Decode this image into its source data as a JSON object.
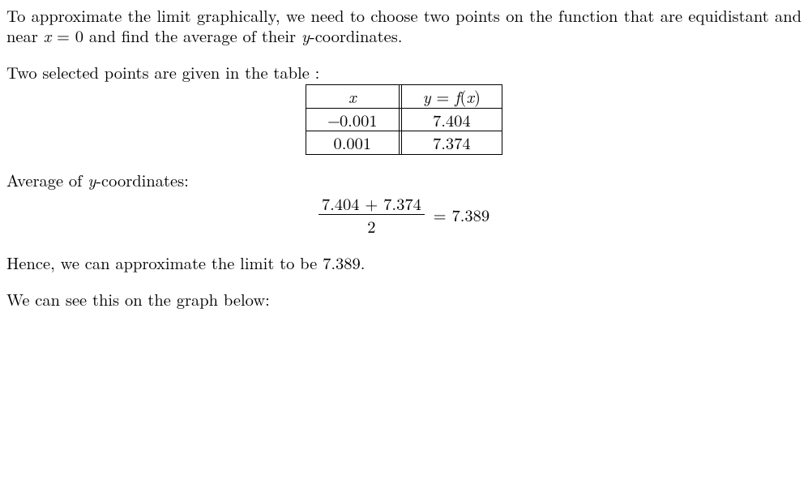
{
  "para1": {
    "a": "To approximate the limit graphically, we need to choose two points on the function that are equidistant and near ",
    "eq": "x = 0",
    "eq_lhs": "x",
    "eq_rhs": " = 0",
    "b": " and find the average of their ",
    "yvar": "y",
    "c": "-coordinates."
  },
  "para2": "Two selected points are given in the table :",
  "table": {
    "header": {
      "x": "x",
      "y_lhs": "y",
      "y_eq": " = ",
      "y_fn": "f",
      "y_paren_open": "(",
      "y_arg": "x",
      "y_paren_close": ")"
    },
    "rows": [
      {
        "x_prefix": "−",
        "x_val": "0.001",
        "y": "7.404"
      },
      {
        "x_prefix": "",
        "x_val": "0.001",
        "y": "7.374"
      }
    ]
  },
  "para3": {
    "a": "Average of ",
    "yvar": "y",
    "b": "-coordinates:"
  },
  "equation": {
    "num": "7.404 + 7.374",
    "den": "2",
    "result": "= 7.389"
  },
  "para4": "Hence, we can approximate the limit to be 7.389.",
  "para5": "We can see this on the graph below:"
}
